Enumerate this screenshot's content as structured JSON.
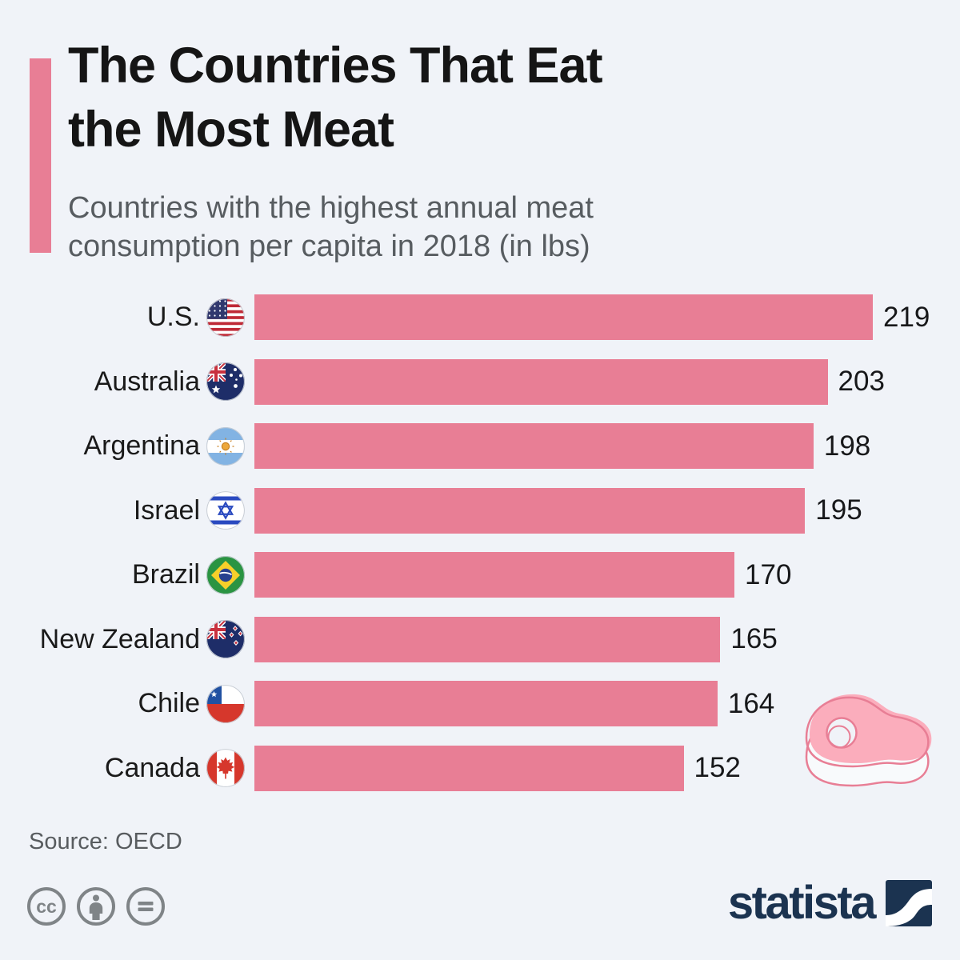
{
  "header": {
    "title_line1": "The Countries That Eat",
    "title_line2": "the Most Meat",
    "subtitle_line1": "Countries with the highest annual meat",
    "subtitle_line2": "consumption per capita in 2018 (in lbs)"
  },
  "chart_data": {
    "type": "bar",
    "orientation": "horizontal",
    "title": "The Countries That Eat the Most Meat",
    "subtitle": "Countries with the highest annual meat consumption per capita in 2018 (in lbs)",
    "unit": "lbs per capita",
    "year": "2018",
    "categories": [
      "U.S.",
      "Australia",
      "Argentina",
      "Israel",
      "Brazil",
      "New Zealand",
      "Chile",
      "Canada"
    ],
    "values": [
      219,
      203,
      198,
      195,
      170,
      165,
      164,
      152
    ],
    "xlim": [
      0,
      219
    ],
    "bar_color": "#e87e95",
    "value_labels_shown": true,
    "grid": false,
    "legend": false,
    "flag_icons": [
      "us-flag-icon",
      "australia-flag-icon",
      "argentina-flag-icon",
      "israel-flag-icon",
      "brazil-flag-icon",
      "new-zealand-flag-icon",
      "chile-flag-icon",
      "canada-flag-icon"
    ]
  },
  "footer": {
    "source": "Source: OECD",
    "license_icons": [
      "cc-icon",
      "attribution-person-icon",
      "equals-icon"
    ],
    "brand_wordmark": "statista"
  },
  "colors": {
    "background": "#f0f3f8",
    "bar_pink": "#e87e95",
    "steak_fill": "#fbadbc",
    "title_text": "#151515",
    "subtitle_text": "#575c60",
    "statista_navy": "#1b3350",
    "icon_gray": "#7f8487"
  }
}
